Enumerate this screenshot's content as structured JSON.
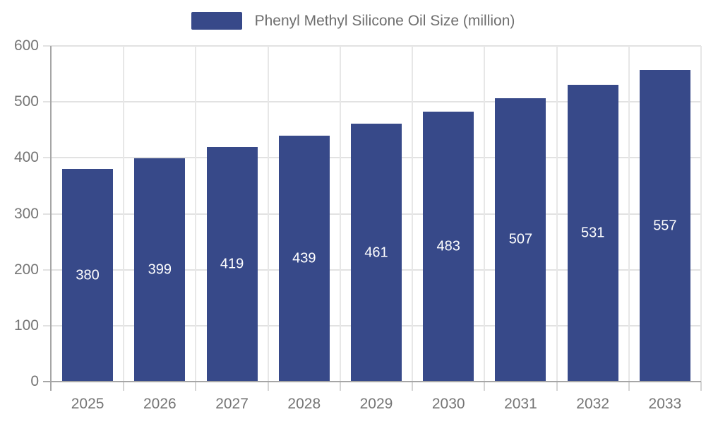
{
  "legend": {
    "label": "Phenyl Methyl Silicone Oil Size (million)"
  },
  "chart_data": {
    "type": "bar",
    "title": "Phenyl Methyl Silicone Oil Size (million)",
    "categories": [
      "2025",
      "2026",
      "2027",
      "2028",
      "2029",
      "2030",
      "2031",
      "2032",
      "2033"
    ],
    "series": [
      {
        "name": "Phenyl Methyl Silicone Oil Size (million)",
        "values": [
          380,
          399,
          419,
          439,
          461,
          483,
          507,
          531,
          557
        ]
      }
    ],
    "xlabel": "",
    "ylabel": "",
    "ylim": [
      0,
      600
    ],
    "yticks": [
      0,
      100,
      200,
      300,
      400,
      500,
      600
    ],
    "grid": true,
    "legend_position": "top-center",
    "bar_value_labels": true
  },
  "colors": {
    "bar": "#374989",
    "grid_line": "#e2e2e2",
    "vertical_grid_line": "#e7e7e7",
    "axis_line": "#a6a6a6",
    "boundary_tick": "#d4d4d4",
    "tick_label": "#757575",
    "legend_text": "#6e6e6e",
    "value_label": "#ffffff",
    "background": "#ffffff"
  }
}
